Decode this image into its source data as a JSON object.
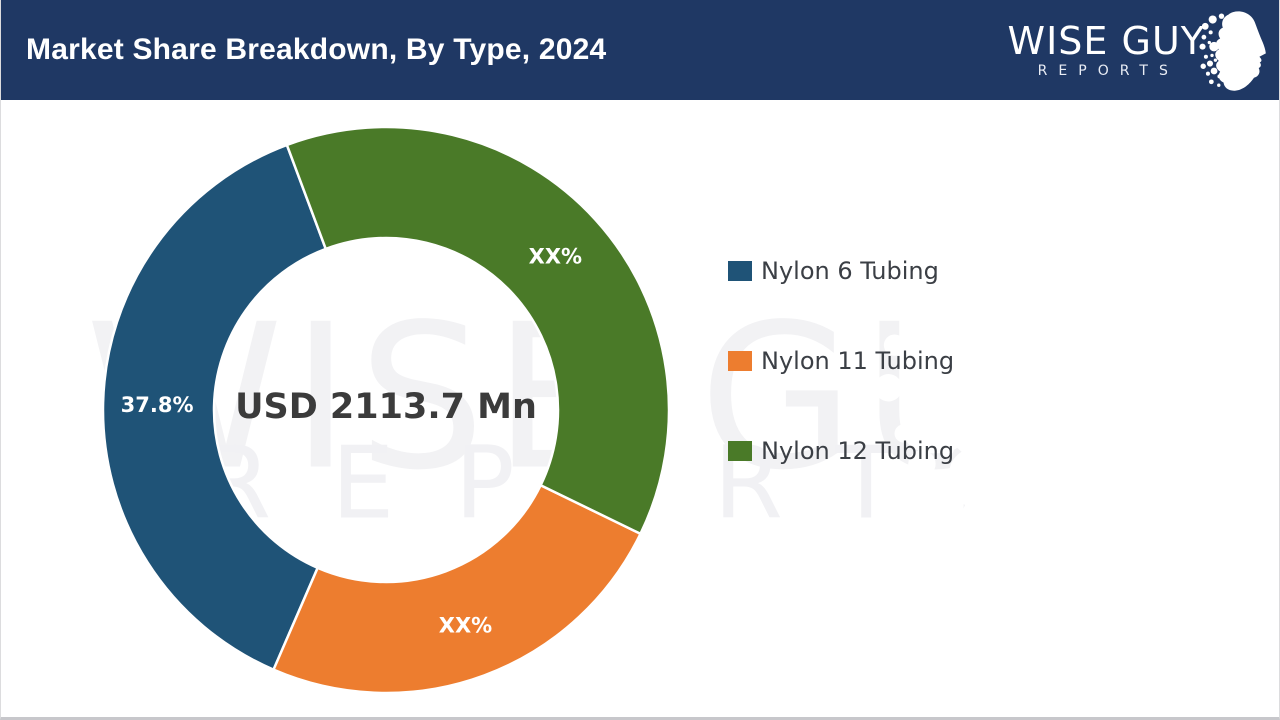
{
  "header": {
    "title": "Market Share Breakdown, By Type, 2024"
  },
  "brand": {
    "name": "WISE GUY",
    "sub": "REPORTS"
  },
  "watermark": {
    "line1": "WISE GUY",
    "line2": "REPORTS"
  },
  "chart_data": {
    "type": "pie",
    "subtype": "donut",
    "title": "Market Share Breakdown, By Type, 2024",
    "center_label": "USD 2113.7 Mn",
    "start_angle_deg": 110.5,
    "direction": "counterclockwise",
    "legend_position": "right",
    "categories": [
      "Nylon 6 Tubing",
      "Nylon 11 Tubing",
      "Nylon 12 Tubing"
    ],
    "segments": [
      {
        "label": "Nylon 6 Tubing",
        "display_value": "37.8%",
        "value_pct_est": 37.8,
        "color": "#1F5377"
      },
      {
        "label": "Nylon 11 Tubing",
        "display_value": "XX%",
        "value_pct_est": 24.3,
        "color": "#ED7D2F"
      },
      {
        "label": "Nylon 12 Tubing",
        "display_value": "XX%",
        "value_pct_est": 37.9,
        "color": "#4A7A28"
      }
    ],
    "colors": {
      "header_navy": "#1F3864",
      "center_text": "#3B3B3B",
      "legend_text": "#3B3F45",
      "segment_gap": "#FFFFFF"
    }
  }
}
